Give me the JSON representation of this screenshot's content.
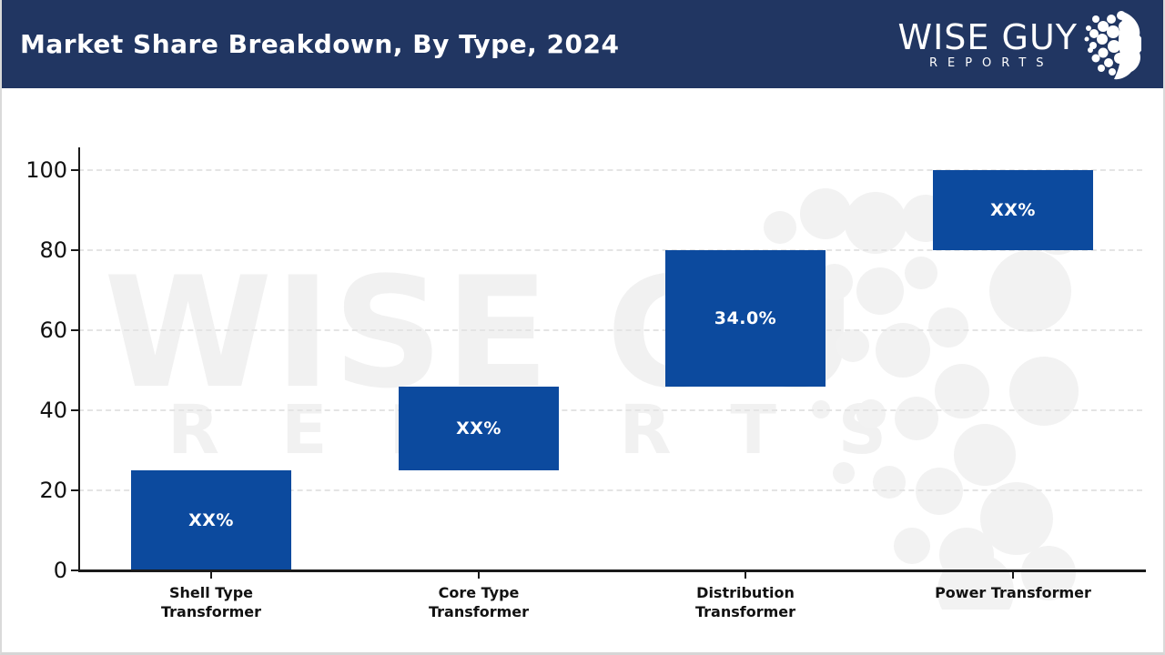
{
  "header": {
    "title": "Market Share Breakdown, By Type, 2024",
    "logo_line1": "WISE GUY",
    "logo_line2": "REPORTS",
    "bg_color": "#213662"
  },
  "watermark": {
    "line1": "WISE GU",
    "line2": "REPORTS"
  },
  "chart_data": {
    "type": "bar",
    "variant": "waterfall",
    "title": "Market Share Breakdown, By Type, 2024",
    "categories": [
      [
        "Shell Type",
        "Transformer"
      ],
      [
        "Core Type",
        "Transformer"
      ],
      [
        "Distribution",
        "Transformer"
      ],
      [
        "Power Transformer"
      ]
    ],
    "bars": [
      {
        "category": "Shell Type Transformer",
        "start": 0,
        "end": 25,
        "label": "XX%"
      },
      {
        "category": "Core Type Transformer",
        "start": 25,
        "end": 46,
        "label": "XX%"
      },
      {
        "category": "Distribution Transformer",
        "start": 46,
        "end": 80,
        "label": "34.0%"
      },
      {
        "category": "Power Transformer",
        "start": 80,
        "end": 100,
        "label": "XX%"
      }
    ],
    "ylim": [
      0,
      100
    ],
    "yticks": [
      0,
      20,
      40,
      60,
      80,
      100
    ],
    "grid": {
      "horizontal": true,
      "style": "dashed"
    },
    "legend": "none",
    "xlabel": "",
    "ylabel": "",
    "bar_color": "#0c4a9e",
    "bar_label_color": "#ffffff",
    "axis_color": "#1a1a1a",
    "gridline_color": "#e4e4e4"
  }
}
